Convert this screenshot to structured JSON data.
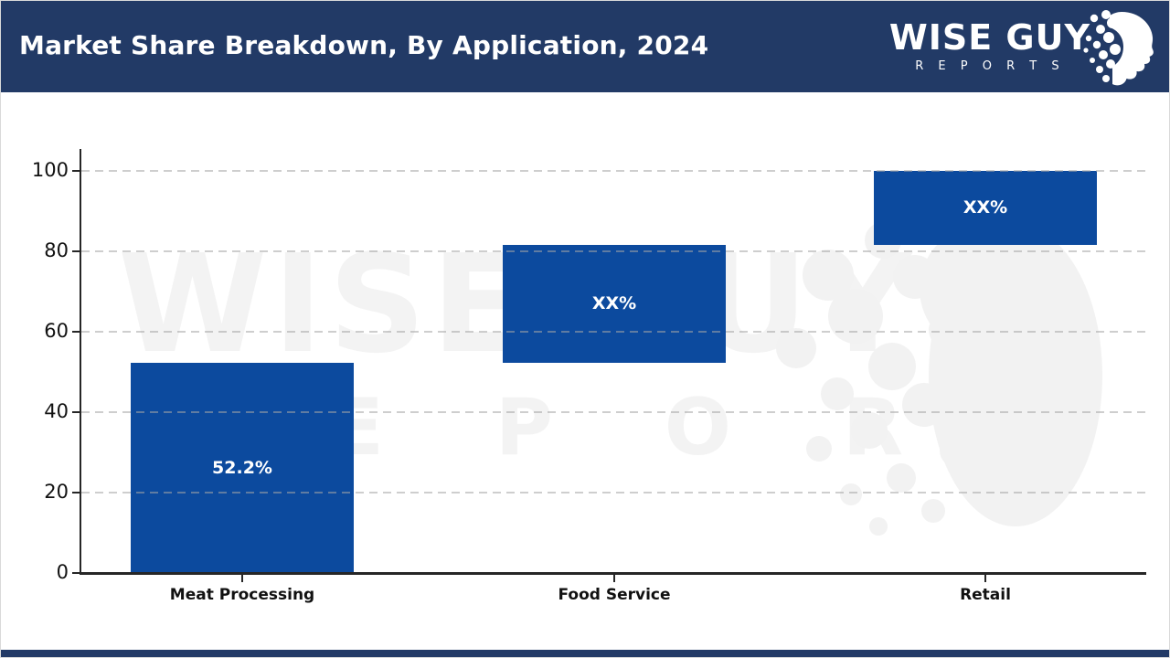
{
  "header": {
    "title": "Market Share Breakdown, By Application, 2024",
    "logo": {
      "wordmark": "WISE GUY",
      "tagline": "R E P O R T S"
    }
  },
  "watermark": {
    "line1": "WISE GUY",
    "line2": "R E P O R T S"
  },
  "chart_data": {
    "type": "bar",
    "variant": "waterfall",
    "title": "Market Share Breakdown, By Application, 2024",
    "categories": [
      "Meat Processing",
      "Food Service",
      "Retail"
    ],
    "series": [
      {
        "name": "Market Share",
        "segments": [
          {
            "category": "Meat Processing",
            "start": 0,
            "end": 52.2,
            "label": "52.2%"
          },
          {
            "category": "Food Service",
            "start": 52.2,
            "end": 81.7,
            "label": "XX%"
          },
          {
            "category": "Retail",
            "start": 81.7,
            "end": 100,
            "label": "XX%"
          }
        ]
      }
    ],
    "xlabel": "",
    "ylabel": "",
    "yticks": [
      0,
      20,
      40,
      60,
      80,
      100
    ],
    "ylim": [
      0,
      100
    ],
    "grid": {
      "axis": "y",
      "style": "dashed"
    },
    "legend": false,
    "colors": {
      "bar": "#0C4A9E",
      "header": "#223A66",
      "axis": "#262626",
      "gridline": "#CFCFCF",
      "value_label": "#FFFFFF"
    }
  }
}
